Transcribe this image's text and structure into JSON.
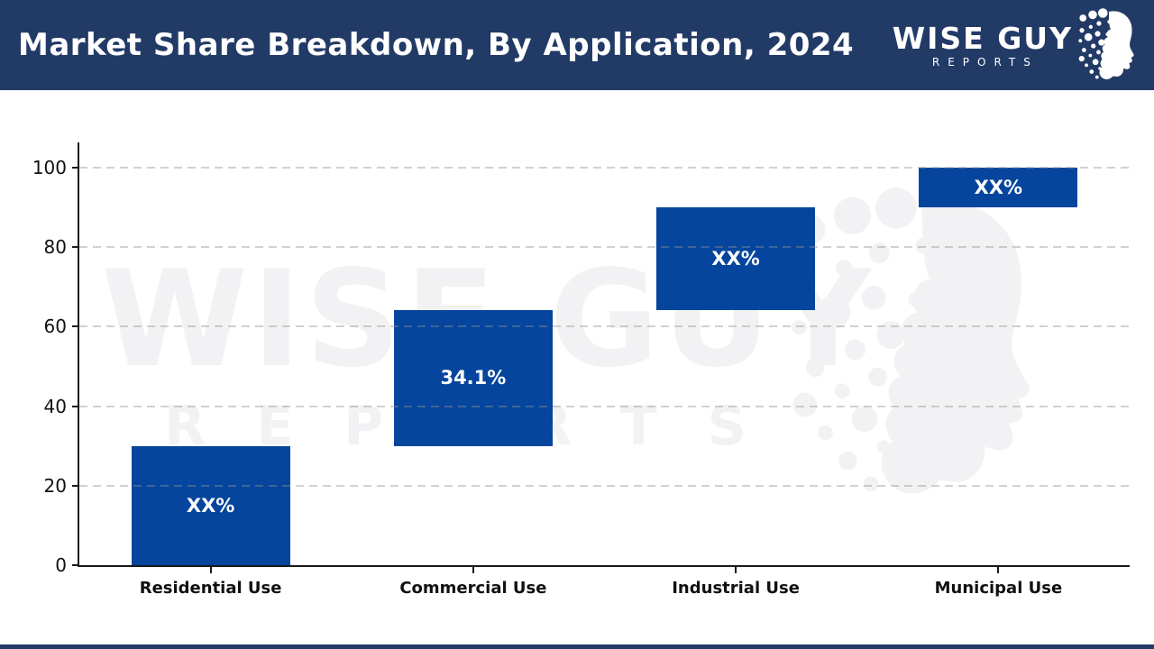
{
  "header": {
    "title": "Market Share Breakdown, By Application, 2024",
    "logo": {
      "line1": "WISE GUY",
      "line2": "REPORTS"
    }
  },
  "watermark": {
    "line1": "WISE GUY",
    "line2": "REPORTS"
  },
  "colors": {
    "header_bg": "#223a66",
    "footer_bg": "#223a66",
    "bar_fill": "#05459d",
    "bar_label": "#ffffff",
    "axis": "#1a1a1a",
    "tick_label": "#111111",
    "watermark": "#f2f2f4",
    "title_text": "#ffffff"
  },
  "icons": {
    "logo_head": "dotted-head-profile-icon",
    "watermark_head": "dotted-head-profile-watermark"
  },
  "chart_data": {
    "type": "bar",
    "variant": "floating-waterfall",
    "title": "Market Share Breakdown, By Application, 2024",
    "xlabel": "",
    "ylabel": "",
    "categories": [
      "Residential Use",
      "Commercial Use",
      "Industrial Use",
      "Municipal Use"
    ],
    "bars": [
      {
        "category": "Residential Use",
        "start": 0,
        "end": 30,
        "label": "XX%"
      },
      {
        "category": "Commercial Use",
        "start": 30,
        "end": 64.1,
        "label": "34.1%"
      },
      {
        "category": "Industrial Use",
        "start": 64.1,
        "end": 90,
        "label": "XX%"
      },
      {
        "category": "Municipal Use",
        "start": 90,
        "end": 100,
        "label": "XX%"
      }
    ],
    "ylim": [
      0,
      100
    ],
    "yticks": [
      0,
      20,
      40,
      60,
      80,
      100
    ],
    "grid": "horizontal-dashed",
    "legend": false
  }
}
